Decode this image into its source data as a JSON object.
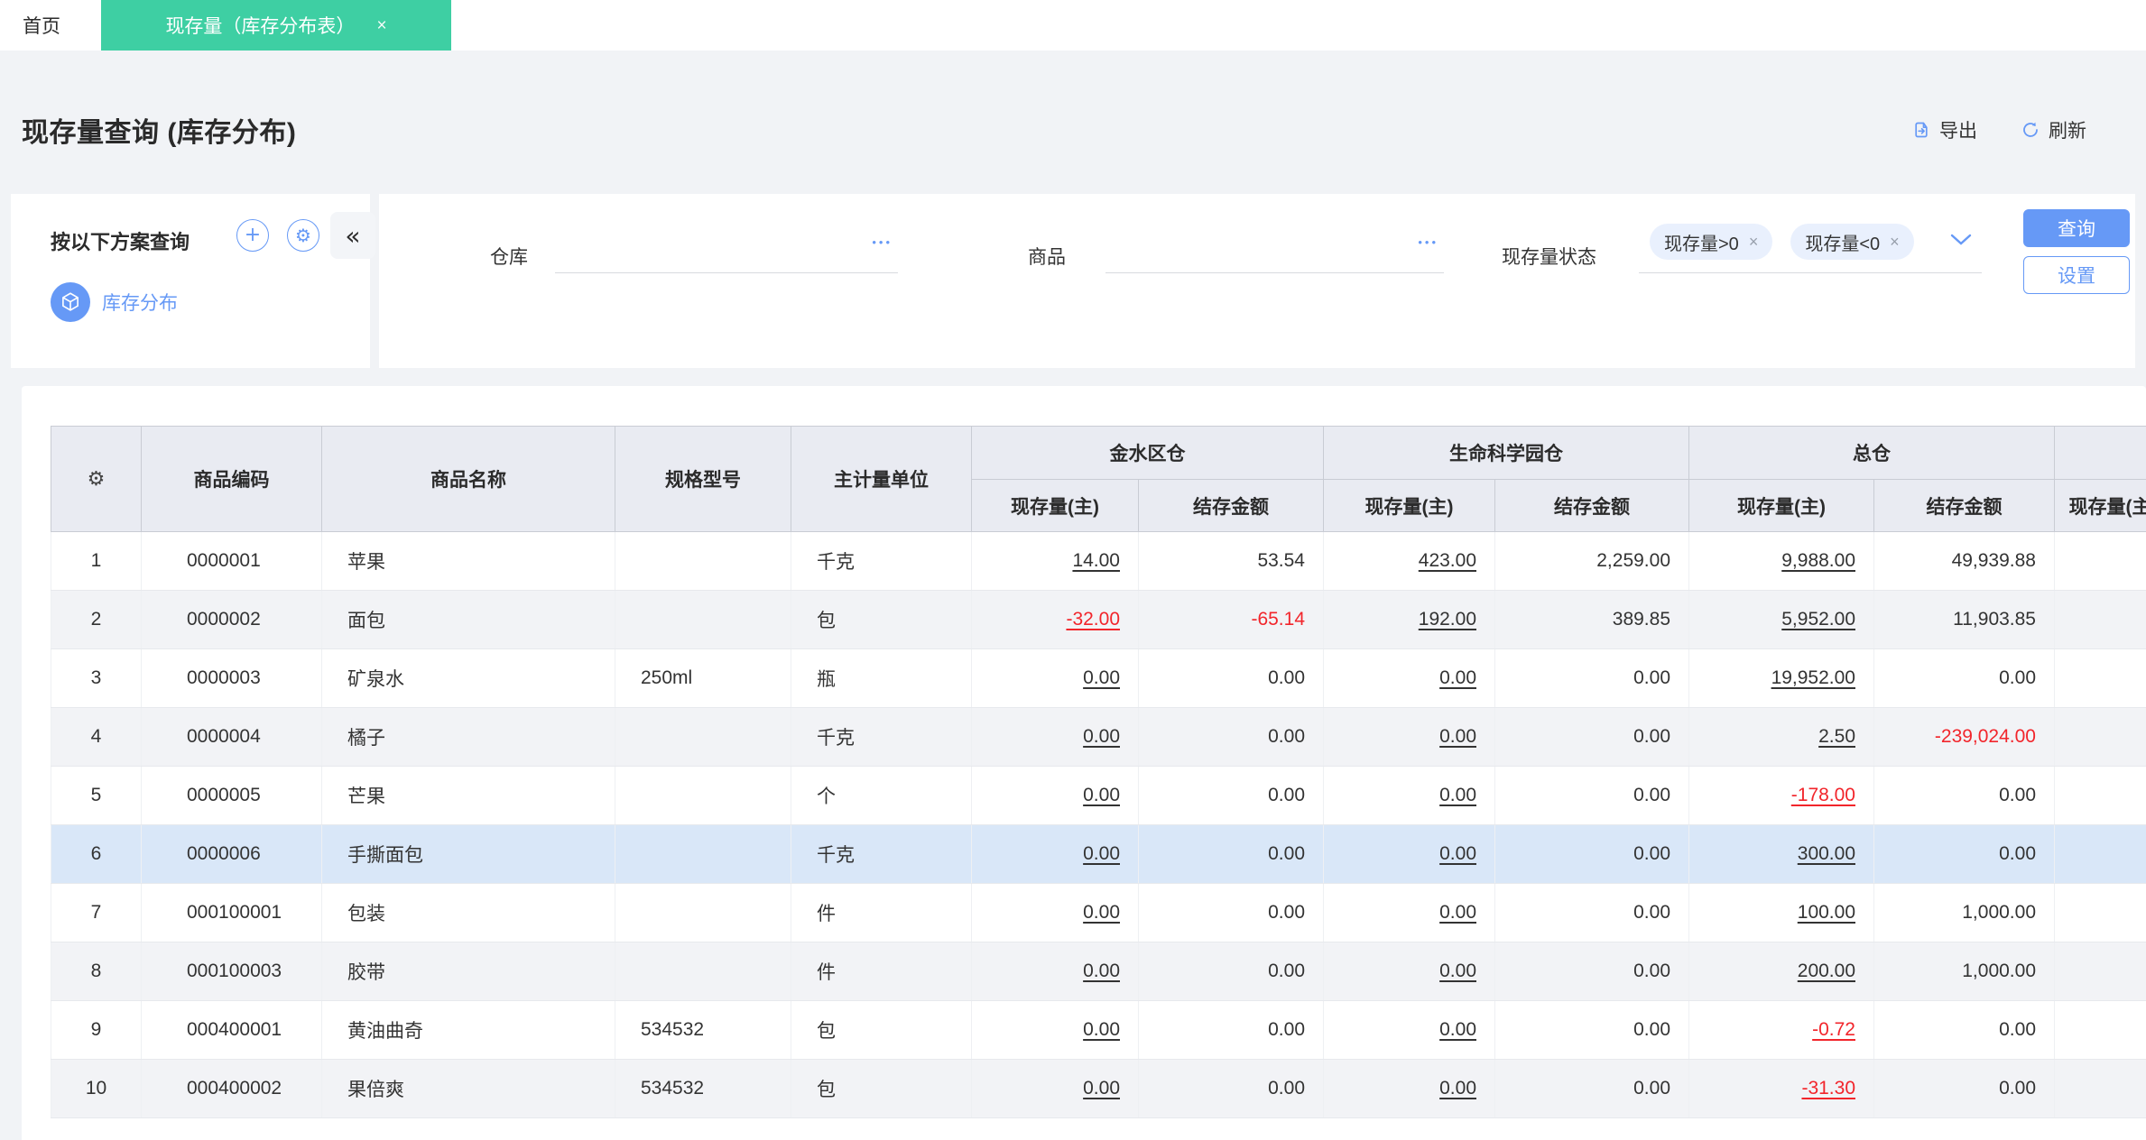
{
  "colors": {
    "tab_green": "#3ecfa3",
    "accent_blue": "#6699f6",
    "negative_red": "#f2252b",
    "header_bg": "#e9ebf2",
    "row_stripe": "#f2f3f6",
    "row_selected": "#d9e7f8"
  },
  "icons": {
    "gear": "⚙",
    "plus": "+",
    "collapse": "«",
    "ellipsis": "•••",
    "close": "×"
  },
  "tabs": {
    "home_label": "首页",
    "active_label": "现存量（库存分布表）",
    "close_glyph": "×"
  },
  "header": {
    "title": "现存量查询 (库存分布)",
    "export_label": "导出",
    "refresh_label": "刷新"
  },
  "filter": {
    "panel_title": "按以下方案查询",
    "scheme_label": "库存分布",
    "warehouse_label": "仓库",
    "product_label": "商品",
    "status_label": "现存量状态",
    "status_tags": [
      {
        "label": "现存量>0",
        "close": "×"
      },
      {
        "label": "现存量<0",
        "close": "×"
      }
    ],
    "query_label": "查询",
    "settings_label": "设置"
  },
  "table": {
    "columns": {
      "code": "商品编码",
      "name": "商品名称",
      "spec": "规格型号",
      "unit": "主计量单位"
    },
    "groups": [
      {
        "name": "金水区仓",
        "sub": [
          "现存量(主)",
          "结存金额"
        ]
      },
      {
        "name": "生命科学园仓",
        "sub": [
          "现存量(主)",
          "结存金额"
        ]
      },
      {
        "name": "总仓",
        "sub": [
          "现存量(主)",
          "结存金额"
        ]
      },
      {
        "name": "",
        "sub": [
          "现存量(主)"
        ]
      }
    ],
    "rows": [
      {
        "num": "1",
        "code": "0000001",
        "name": "苹果",
        "spec": "",
        "unit": "千克",
        "highlight": false,
        "values": [
          {
            "t": "14.00",
            "link": true
          },
          {
            "t": "53.54"
          },
          {
            "t": "423.00",
            "link": true
          },
          {
            "t": "2,259.00"
          },
          {
            "t": "9,988.00",
            "link": true
          },
          {
            "t": "49,939.88"
          }
        ]
      },
      {
        "num": "2",
        "code": "0000002",
        "name": "面包",
        "spec": "",
        "unit": "包",
        "highlight": false,
        "values": [
          {
            "t": "-32.00",
            "link": true,
            "neg": true
          },
          {
            "t": "-65.14",
            "neg": true
          },
          {
            "t": "192.00",
            "link": true
          },
          {
            "t": "389.85"
          },
          {
            "t": "5,952.00",
            "link": true
          },
          {
            "t": "11,903.85"
          }
        ]
      },
      {
        "num": "3",
        "code": "0000003",
        "name": "矿泉水",
        "spec": "250ml",
        "unit": "瓶",
        "highlight": false,
        "values": [
          {
            "t": "0.00",
            "link": true
          },
          {
            "t": "0.00"
          },
          {
            "t": "0.00",
            "link": true
          },
          {
            "t": "0.00"
          },
          {
            "t": "19,952.00",
            "link": true
          },
          {
            "t": "0.00"
          }
        ]
      },
      {
        "num": "4",
        "code": "0000004",
        "name": "橘子",
        "spec": "",
        "unit": "千克",
        "highlight": false,
        "values": [
          {
            "t": "0.00",
            "link": true
          },
          {
            "t": "0.00"
          },
          {
            "t": "0.00",
            "link": true
          },
          {
            "t": "0.00"
          },
          {
            "t": "2.50",
            "link": true
          },
          {
            "t": "-239,024.00",
            "neg": true
          }
        ]
      },
      {
        "num": "5",
        "code": "0000005",
        "name": "芒果",
        "spec": "",
        "unit": "个",
        "highlight": false,
        "values": [
          {
            "t": "0.00",
            "link": true
          },
          {
            "t": "0.00"
          },
          {
            "t": "0.00",
            "link": true
          },
          {
            "t": "0.00"
          },
          {
            "t": "-178.00",
            "link": true,
            "neg": true
          },
          {
            "t": "0.00"
          }
        ]
      },
      {
        "num": "6",
        "code": "0000006",
        "name": "手撕面包",
        "spec": "",
        "unit": "千克",
        "highlight": true,
        "values": [
          {
            "t": "0.00",
            "link": true
          },
          {
            "t": "0.00"
          },
          {
            "t": "0.00",
            "link": true
          },
          {
            "t": "0.00"
          },
          {
            "t": "300.00",
            "link": true
          },
          {
            "t": "0.00"
          }
        ]
      },
      {
        "num": "7",
        "code": "000100001",
        "name": "包装",
        "spec": "",
        "unit": "件",
        "highlight": false,
        "values": [
          {
            "t": "0.00",
            "link": true
          },
          {
            "t": "0.00"
          },
          {
            "t": "0.00",
            "link": true
          },
          {
            "t": "0.00"
          },
          {
            "t": "100.00",
            "link": true
          },
          {
            "t": "1,000.00"
          }
        ]
      },
      {
        "num": "8",
        "code": "000100003",
        "name": "胶带",
        "spec": "",
        "unit": "件",
        "highlight": false,
        "values": [
          {
            "t": "0.00",
            "link": true
          },
          {
            "t": "0.00"
          },
          {
            "t": "0.00",
            "link": true
          },
          {
            "t": "0.00"
          },
          {
            "t": "200.00",
            "link": true
          },
          {
            "t": "1,000.00"
          }
        ]
      },
      {
        "num": "9",
        "code": "000400001",
        "name": "黄油曲奇",
        "spec": "534532",
        "unit": "包",
        "highlight": false,
        "values": [
          {
            "t": "0.00",
            "link": true
          },
          {
            "t": "0.00"
          },
          {
            "t": "0.00",
            "link": true
          },
          {
            "t": "0.00"
          },
          {
            "t": "-0.72",
            "link": true,
            "neg": true
          },
          {
            "t": "0.00"
          }
        ]
      },
      {
        "num": "10",
        "code": "000400002",
        "name": "果倍爽",
        "spec": "534532",
        "unit": "包",
        "highlight": false,
        "values": [
          {
            "t": "0.00",
            "link": true
          },
          {
            "t": "0.00"
          },
          {
            "t": "0.00",
            "link": true
          },
          {
            "t": "0.00"
          },
          {
            "t": "-31.30",
            "link": true,
            "neg": true
          },
          {
            "t": "0.00"
          }
        ]
      }
    ]
  }
}
